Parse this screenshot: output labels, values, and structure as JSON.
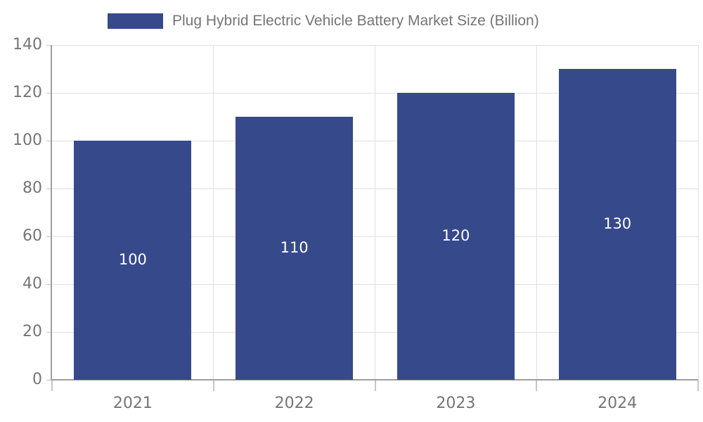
{
  "chart_data": {
    "type": "bar",
    "title": "Plug Hybrid Electric Vehicle Battery Market Size (Billion)",
    "legend": {
      "label": "Plug Hybrid Electric Vehicle Battery Market Size (Billion)",
      "position": "top"
    },
    "categories": [
      "2021",
      "2022",
      "2023",
      "2024"
    ],
    "series": [
      {
        "name": "Plug Hybrid Electric Vehicle Battery Market Size (Billion)",
        "values": [
          100,
          110,
          120,
          130
        ]
      }
    ],
    "bar_labels": [
      "100",
      "110",
      "120",
      "130"
    ],
    "xlabel": "",
    "ylabel": "",
    "ylim": [
      0,
      140
    ],
    "yticks": [
      0,
      20,
      40,
      60,
      80,
      100,
      120,
      140
    ],
    "grid": true,
    "colors": {
      "bar": "#36498a",
      "bar_label": "#ffffff",
      "axis": "#9e9e9e",
      "grid": "#e0e0e0",
      "tick": "#c6c6c6",
      "text": "#757575",
      "background": "#ffffff"
    }
  }
}
